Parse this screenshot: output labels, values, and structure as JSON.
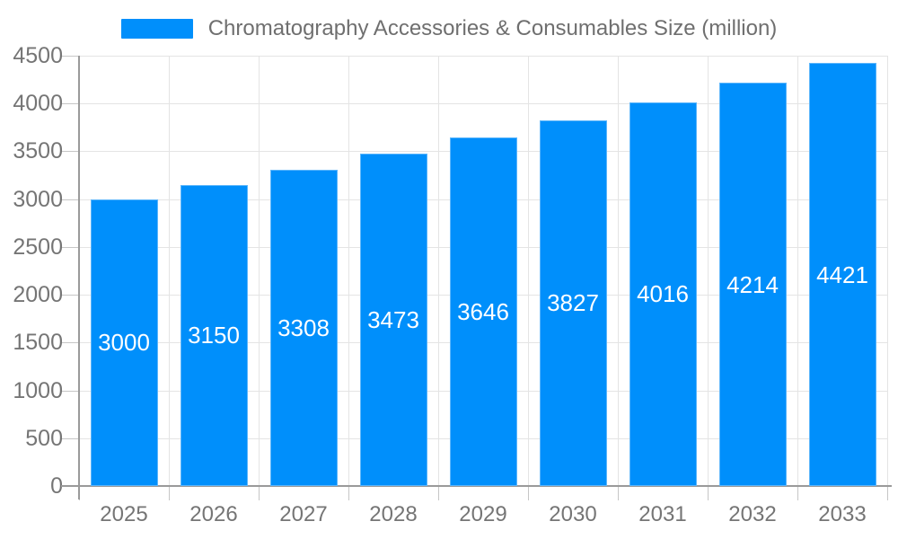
{
  "chart_data": {
    "type": "bar",
    "title": "Chromatography Accessories & Consumables Size (million)",
    "categories": [
      "2025",
      "2026",
      "2027",
      "2028",
      "2029",
      "2030",
      "2031",
      "2032",
      "2033"
    ],
    "values": [
      3000,
      3150,
      3308,
      3473,
      3646,
      3827,
      4016,
      4214,
      4421
    ],
    "bar_value_labels": [
      "3000",
      "3150",
      "3308",
      "3473",
      "3646",
      "3827",
      "4016",
      "4214",
      "4421"
    ],
    "xlabel": "",
    "ylabel": "",
    "ylim": [
      0,
      4500
    ],
    "ytick_step": 500,
    "yticks": [
      0,
      500,
      1000,
      1500,
      2000,
      2500,
      3000,
      3500,
      4000,
      4500
    ],
    "legend_position": "top",
    "grid": true,
    "value_label_position": "inside-center",
    "colors": {
      "bar": "#008FFB",
      "bar_edge": "#5cb6fb",
      "bar_label": "#ffffff",
      "grid": "#e4e4e4",
      "tick": "#c6c6c6",
      "axis_line": "#9a9a9a",
      "axis_label": "#757575",
      "title": "#6f6f6f",
      "background": "#ffffff"
    }
  }
}
